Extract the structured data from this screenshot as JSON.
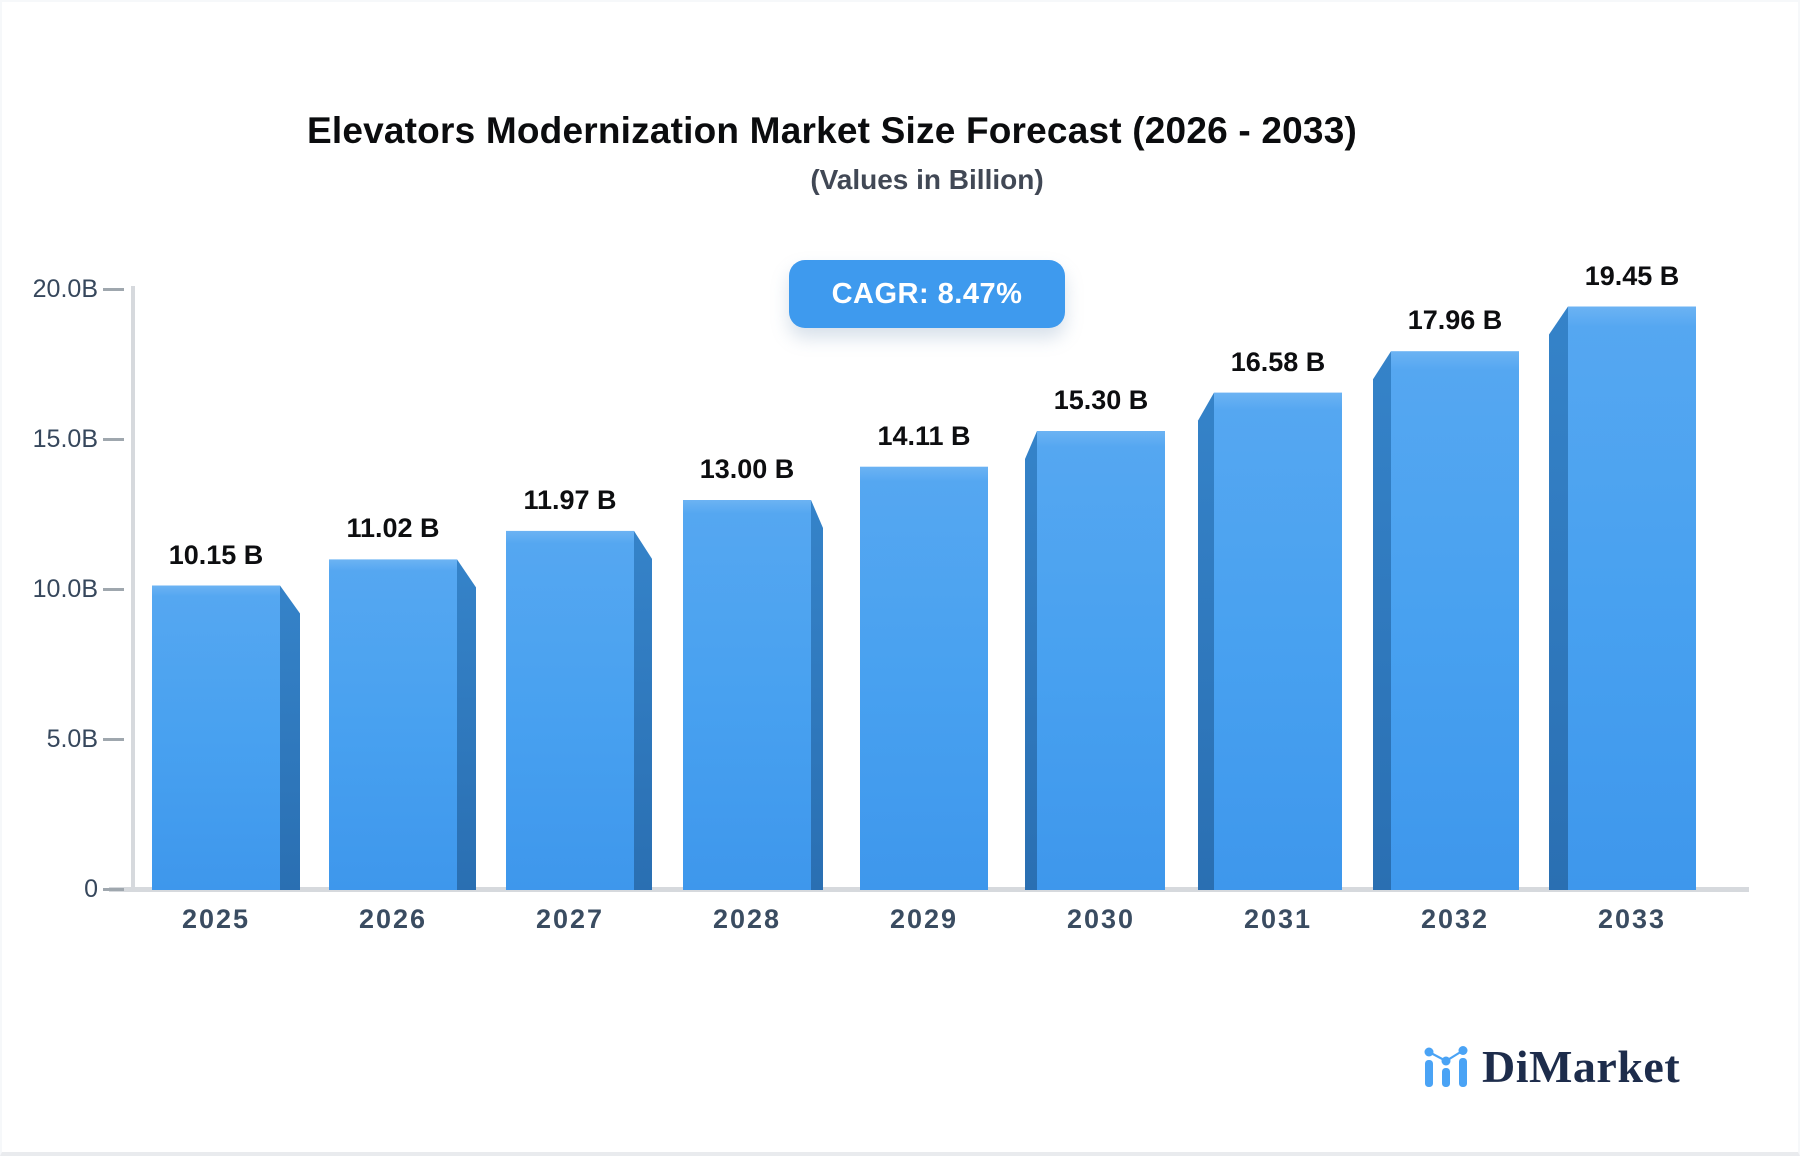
{
  "title": "Elevators Modernization Market Size Forecast (2026 - 2033)",
  "subtitle": "(Values in Billion)",
  "cagr_badge": "CAGR: 8.47%",
  "brand": {
    "name": "DiMarket",
    "icon": "mini-bar-chart-icon"
  },
  "colors": {
    "bar_face": "#48a1f0",
    "bar_face_top": "#6cb3f3",
    "bar_face_bottom": "#3e97ec",
    "bar_side_top": "#3583c9",
    "bar_side_bottom": "#2a6fb2",
    "badge_bg": "#3e9aee",
    "axis_line": "#d6d9dd",
    "tick_dash": "#9fa7ae",
    "axis_text": "#36475c",
    "category_text": "#3a4c61",
    "value_text": "#0d0e10",
    "logo_blue": "#4aa3f5",
    "logo_navy": "#1d2c4b"
  },
  "chart_data": {
    "type": "bar",
    "style": "3d-bars",
    "title": "Elevators Modernization Market Size Forecast (2026 - 2033)",
    "subtitle": "(Values in Billion)",
    "cagr": "8.47%",
    "categories": [
      "2025",
      "2026",
      "2027",
      "2028",
      "2029",
      "2030",
      "2031",
      "2032",
      "2033"
    ],
    "values": [
      10.15,
      11.02,
      11.97,
      13.0,
      14.11,
      15.3,
      16.58,
      17.96,
      19.45
    ],
    "value_labels": [
      "10.15 B",
      "11.02 B",
      "11.97 B",
      "13.00 B",
      "14.11 B",
      "15.30 B",
      "16.58 B",
      "17.96 B",
      "19.45 B"
    ],
    "y_ticks": [
      {
        "value": 20,
        "label": "20.0B"
      },
      {
        "value": 15,
        "label": "15.0B"
      },
      {
        "value": 10,
        "label": "10.0B"
      },
      {
        "value": 5,
        "label": "5.0B"
      },
      {
        "value": 0,
        "label": "0"
      }
    ],
    "ylim": [
      0,
      20
    ],
    "xlabel": "",
    "ylabel": "",
    "grid": false,
    "legend": "none"
  }
}
